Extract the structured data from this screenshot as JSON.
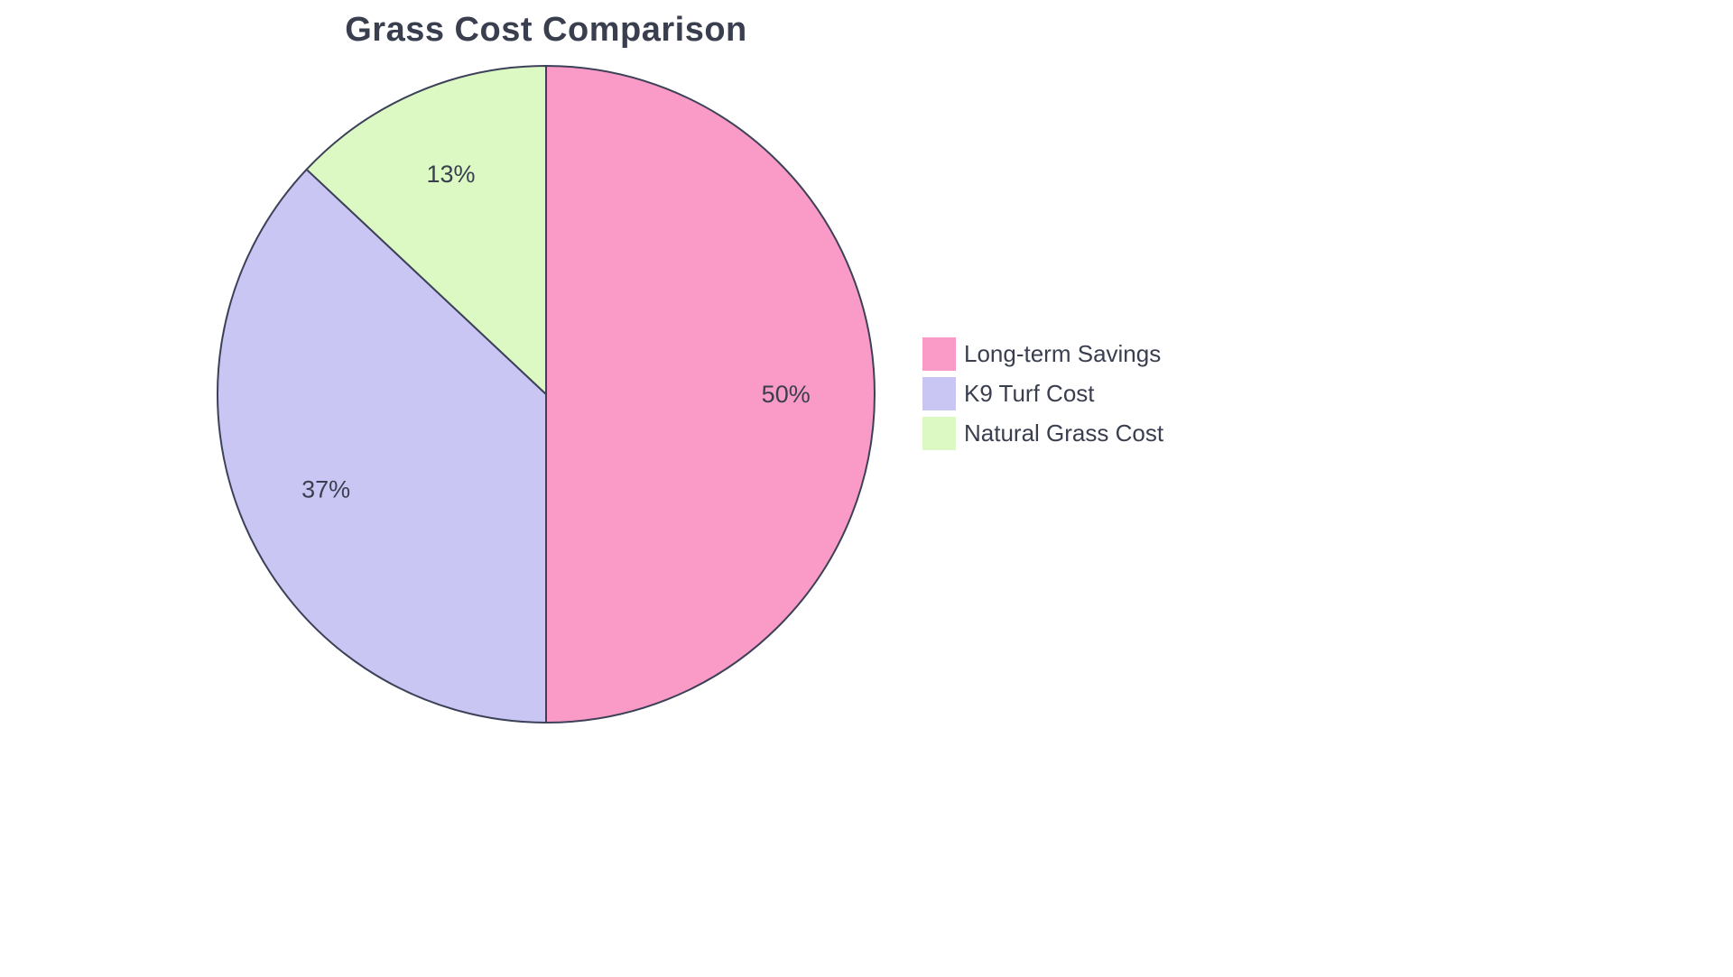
{
  "page": {
    "background_color": "#FFFFFF"
  },
  "chart_data": {
    "type": "pie",
    "title": "Grass Cost Comparison",
    "slices": [
      {
        "label": "Long-term Savings",
        "value": 50,
        "percent_label": "50%",
        "color": "#F99BC6"
      },
      {
        "label": "K9 Turf Cost",
        "value": 37,
        "percent_label": "37%",
        "color": "#C9C6F4"
      },
      {
        "label": "Natural Grass Cost",
        "value": 13,
        "percent_label": "13%",
        "color": "#DCF9C4"
      }
    ],
    "start_angle_deg": 0,
    "direction": "clockwise",
    "stroke_color": "#3C4158",
    "stroke_width": 2,
    "label_color": "#3A3F4F",
    "legend_position": "right",
    "grid": false
  }
}
